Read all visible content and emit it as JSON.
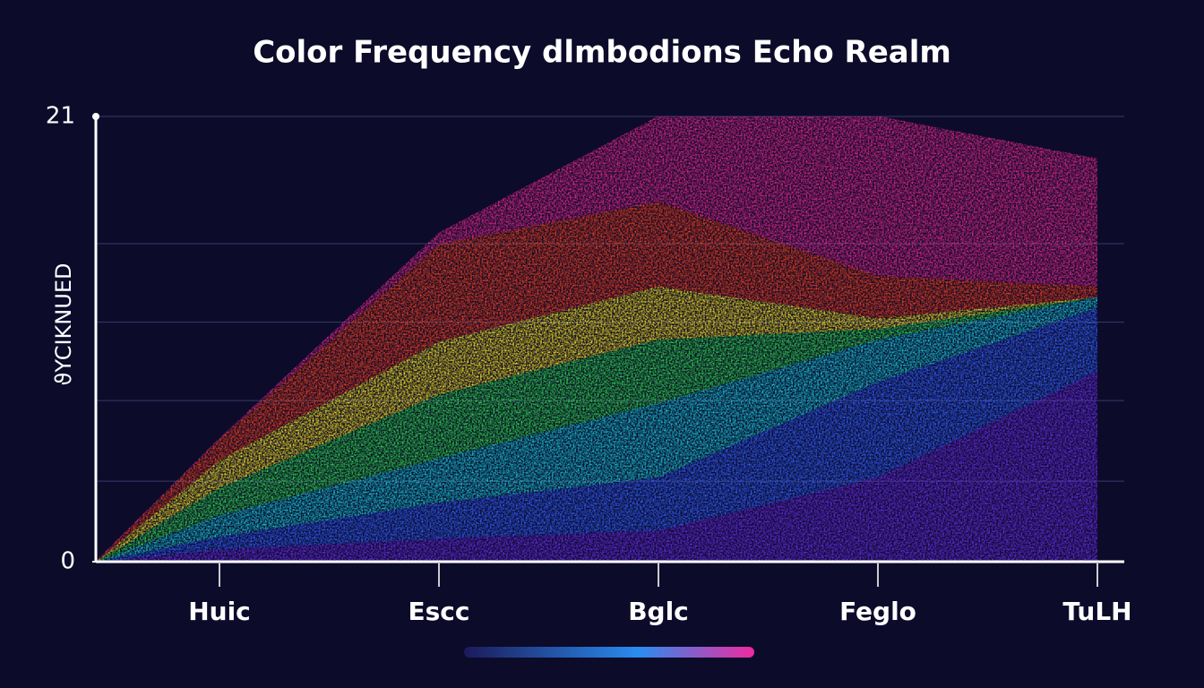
{
  "chart_data": {
    "type": "area",
    "stacked": true,
    "title": "Color Frequency dlmbodions Echo Realm",
    "y_label": "ϑYCIKNUED",
    "categories": [
      "Huic",
      "Escc",
      "Bglc",
      "Feglo",
      "TuLH"
    ],
    "series": [
      {
        "color": "#6a2be8",
        "values": [
          0.6,
          1.1,
          1.5,
          4.0,
          9.0
        ]
      },
      {
        "color": "#2f5fff",
        "values": [
          0.6,
          1.7,
          2.5,
          4.5,
          3.0
        ]
      },
      {
        "color": "#18c8d8",
        "values": [
          1.0,
          2.1,
          3.5,
          2.0,
          0.5
        ]
      },
      {
        "color": "#2fd84a",
        "values": [
          1.3,
          3.0,
          3.0,
          0.5,
          0
        ]
      },
      {
        "color": "#f4e020",
        "values": [
          1.3,
          2.5,
          2.5,
          0.5,
          0
        ]
      },
      {
        "color": "#f2401c",
        "values": [
          1.0,
          4.6,
          4.0,
          2.0,
          0.5
        ]
      },
      {
        "color": "#e8288c",
        "values": [
          0,
          0.5,
          4.0,
          7.5,
          6.0
        ]
      }
    ],
    "ylim": [
      0,
      21
    ],
    "yticks": [
      0,
      21
    ],
    "grid_values": [
      3.8,
      7.6,
      11.3,
      15,
      21
    ]
  }
}
